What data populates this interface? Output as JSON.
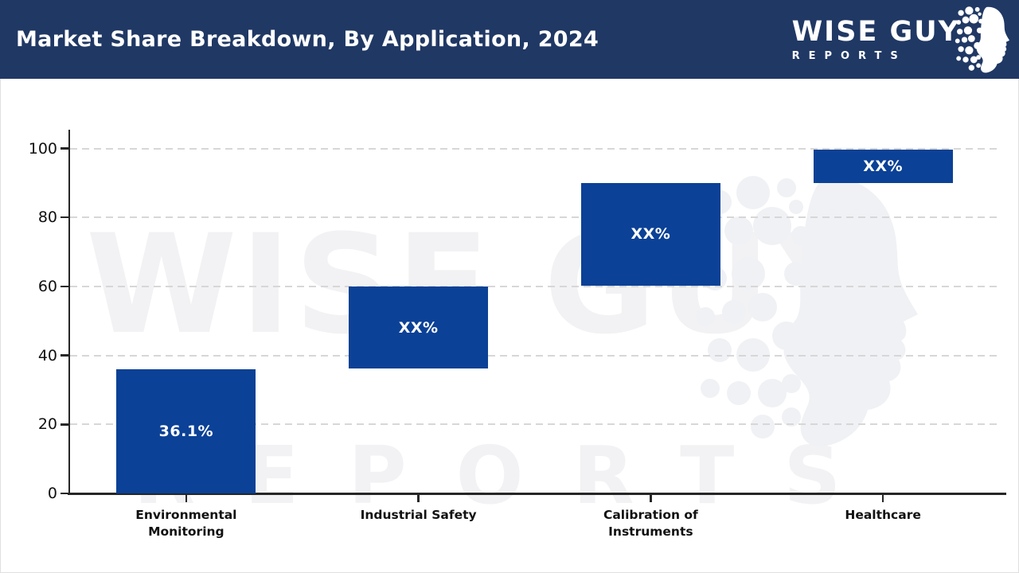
{
  "header": {
    "title": "Market Share Breakdown, By Application, 2024",
    "logo": {
      "wordmark": "WISE GUY",
      "sub": "REPORTS"
    }
  },
  "watermark": {
    "wordmark": "WISE GUY",
    "sub": "REPORTS"
  },
  "chart_data": {
    "type": "bar",
    "variant": "waterfall",
    "title": "Market Share Breakdown, By Application, 2024",
    "categories": [
      "Environmental\nMonitoring",
      "Industrial Safety",
      "Calibration of\nInstruments",
      "Healthcare"
    ],
    "series": [
      {
        "name": "Market share (%)",
        "segments": [
          {
            "category": "Environmental Monitoring",
            "from": 0,
            "to": 36.1,
            "label": "36.1%"
          },
          {
            "category": "Industrial Safety",
            "from": 36.1,
            "to": 60.0,
            "label": "XX%"
          },
          {
            "category": "Calibration of Instruments",
            "from": 60.3,
            "to": 90.0,
            "label": "XX%"
          },
          {
            "category": "Healthcare",
            "from": 90.0,
            "to": 99.7,
            "label": "XX%"
          }
        ]
      }
    ],
    "xlabel": "",
    "ylabel": "",
    "ylim": [
      0,
      100
    ],
    "yticks": [
      0,
      20,
      40,
      60,
      80,
      100
    ],
    "grid": {
      "horizontal": true,
      "style": "dashed",
      "color": "#d7d7d7"
    },
    "legend": "none",
    "colors": {
      "bar": "#0b4196",
      "bar_label": "#ffffff",
      "axis": "#262626",
      "tick_label": "#111111",
      "header_bg": "#203864",
      "header_text": "#ffffff",
      "watermark": "#f2f2f4"
    }
  }
}
